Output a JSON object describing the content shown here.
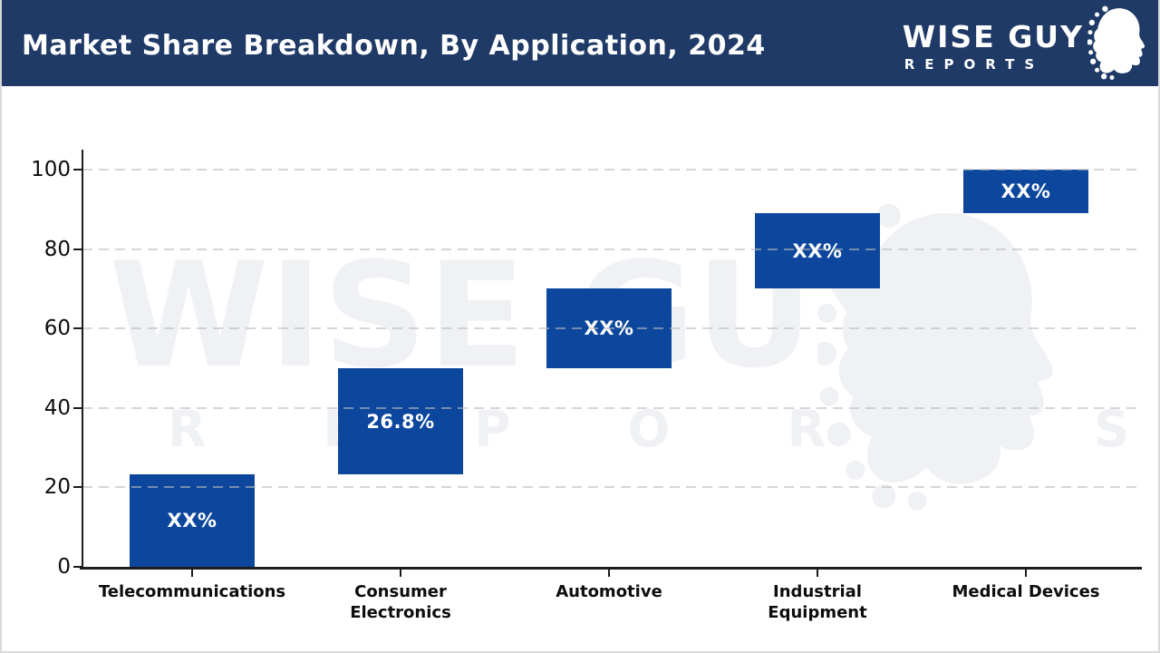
{
  "header": {
    "title": "Market Share Breakdown, By Application, 2024",
    "logo": {
      "line1": "WISE GUY",
      "line2": "REPORTS"
    }
  },
  "watermark": {
    "line1": "WISE GUY",
    "line2": "R E P O R T S"
  },
  "colors": {
    "header_bg": "#1f3a66",
    "bar": "#0c479d",
    "bar_label_text": "#ffffff",
    "grid": "#bbbbbb",
    "axis": "#1c1c1c",
    "tick_text": "#0d0d0d",
    "watermark": "#f0f1f4",
    "page_border": "#d9d9d9"
  },
  "chart_data": {
    "type": "bar",
    "subtype": "waterfall",
    "title": "Market Share Breakdown, By Application, 2024",
    "categories": [
      "Telecommunications",
      "Consumer\nElectronics",
      "Automotive",
      "Industrial\nEquipment",
      "Medical Devices"
    ],
    "segments": [
      {
        "category": "Telecommunications",
        "label": "XX%",
        "start": 0,
        "end": 23.2
      },
      {
        "category": "Consumer Electronics",
        "label": "26.8%",
        "start": 23.2,
        "end": 50
      },
      {
        "category": "Automotive",
        "label": "XX%",
        "start": 50,
        "end": 70
      },
      {
        "category": "Industrial Equipment",
        "label": "XX%",
        "start": 70,
        "end": 89
      },
      {
        "category": "Medical Devices",
        "label": "XX%",
        "start": 89,
        "end": 100
      }
    ],
    "yticks": [
      0,
      20,
      40,
      60,
      80,
      100
    ],
    "ylim": [
      0,
      104
    ],
    "xlabel": "",
    "ylabel": "",
    "grid": "horizontal-dashed",
    "legend": "none"
  }
}
